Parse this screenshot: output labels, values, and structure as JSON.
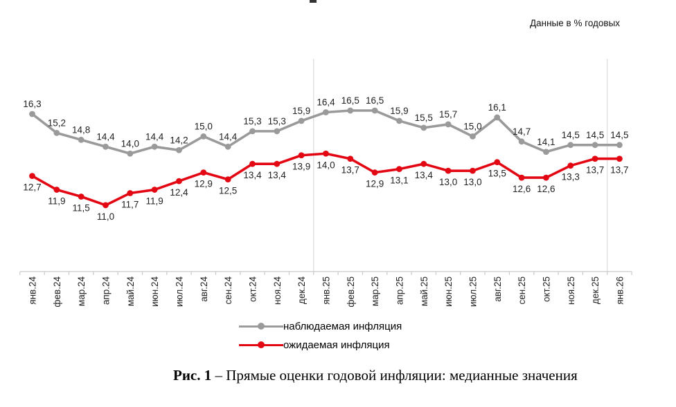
{
  "note": "Данные в % годовых",
  "legend": [
    {
      "label": "наблюдаемая инфляция",
      "color": "#9a9a9a"
    },
    {
      "label": "ожидаемая инфляция",
      "color": "#e30613"
    }
  ],
  "caption": {
    "prefix": "Рис. 1",
    "separator": " – ",
    "text": "Прямые оценки годовой инфляции: медианные значения"
  },
  "chart_data": {
    "type": "line",
    "title": "",
    "subtitle": "Данные в % годовых",
    "xlabel": "",
    "ylabel": "",
    "categories": [
      "янв.24",
      "фев.24",
      "мар.24",
      "апр.24",
      "май.24",
      "июн.24",
      "июл.24",
      "авг.24",
      "сен.24",
      "окт.24",
      "ноя.24",
      "дек.24",
      "янв.25",
      "фев.25",
      "мар.25",
      "апр.25",
      "май.25",
      "июн.25",
      "июл.25",
      "авг.25",
      "сен.25",
      "окт.25",
      "ноя.25",
      "дек.25",
      "янв.26"
    ],
    "series": [
      {
        "name": "наблюдаемая инфляция",
        "color": "#9a9a9a",
        "values": [
          16.3,
          15.2,
          14.8,
          14.4,
          14.0,
          14.4,
          14.2,
          15.0,
          14.4,
          15.3,
          15.3,
          15.9,
          16.4,
          16.5,
          16.5,
          15.9,
          15.5,
          15.7,
          15.0,
          16.1,
          14.7,
          14.1,
          14.5,
          14.5,
          14.5
        ]
      },
      {
        "name": "ожидаемая инфляция",
        "color": "#e30613",
        "values": [
          12.7,
          11.9,
          11.5,
          11.0,
          11.7,
          11.9,
          12.4,
          12.9,
          12.5,
          13.4,
          13.4,
          13.9,
          14.0,
          13.7,
          12.9,
          13.1,
          13.4,
          13.0,
          13.0,
          13.5,
          12.6,
          12.6,
          13.3,
          13.7,
          13.7
        ]
      }
    ],
    "data_labels": true,
    "decimal_separator": ",",
    "layout": {
      "y_axis_visible": false,
      "grid": "vertical-year-separators-only",
      "year_separators_after_index": [
        11,
        23
      ],
      "legend_position": "bottom-left-of-center",
      "axis_color": "#c9c9c9",
      "gridline_color": "#d9d9d9",
      "label_color": "#222222"
    }
  }
}
